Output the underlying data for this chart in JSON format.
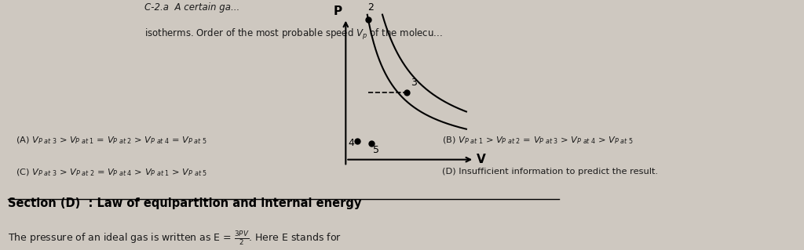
{
  "bg_color": "#cec8c0",
  "text_color": "#1a1a1a",
  "title_color": "#000000",
  "section_title": "Section (D)  : Law of equipartition and internal energy",
  "option_A": "(A) $V_{P\\ at\\ 3}$ > $V_{P\\ at\\ 1}$ = $V_{P\\ at\\ 2}$ > $V_{P\\ at\\ 4}$ = $V_{P\\ at\\ 5}$",
  "option_B": "(B) $V_{P\\ at\\ 1}$ > $V_{P\\ at\\ 2}$ = $V_{P\\ at\\ 3}$ > $V_{P\\ at\\ 4}$ > $V_{P\\ at\\ 5}$",
  "option_C": "(C) $V_{P\\ at\\ 3}$ > $V_{P\\ at\\ 2}$ = $V_{P\\ at\\ 4}$ > $V_{P\\ at\\ 1}$ > $V_{P\\ at\\ 5}$",
  "option_D": "(D) Insufficient information to predict the result.",
  "bottom_text": "The pressure of an ideal gas is written as E = $\\frac{3PV}{2}$. Here E stands for",
  "top_line1": "C-2.a  A certain ga...",
  "top_line2": "isotherms. Order of the most probable speed $V_p$ of the molecu..."
}
